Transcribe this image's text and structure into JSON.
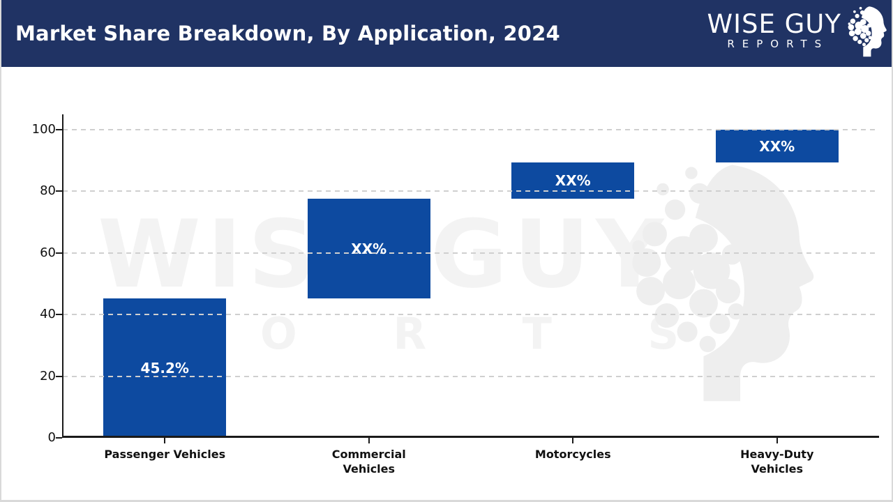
{
  "header": {
    "title": "Market Share Breakdown, By Application, 2024",
    "bg_color": "#203364",
    "logo": {
      "line1": "WISE GUY",
      "line2": "REPORTS"
    }
  },
  "watermark": {
    "line1": "WISE GUY",
    "line2": "P O R T S"
  },
  "chart_data": {
    "type": "bar",
    "subtype": "waterfall",
    "title": "Market Share Breakdown, By Application, 2024",
    "categories": [
      "Passenger Vehicles",
      "Commercial Vehicles",
      "Motorcycles",
      "Heavy-Duty Vehicles"
    ],
    "category_label_lines": [
      [
        "Passenger Vehicles"
      ],
      [
        "Commercial",
        "Vehicles"
      ],
      [
        "Motorcycles"
      ],
      [
        "Heavy-Duty",
        "Vehicles"
      ]
    ],
    "segments": [
      {
        "category": "Passenger Vehicles",
        "start": 0,
        "end": 45.2,
        "label": "45.2%"
      },
      {
        "category": "Commercial Vehicles",
        "start": 45.2,
        "end": 77.6,
        "label": "XX%"
      },
      {
        "category": "Motorcycles",
        "start": 77.6,
        "end": 89.3,
        "label": "XX%"
      },
      {
        "category": "Heavy-Duty Vehicles",
        "start": 89.3,
        "end": 100,
        "label": "XX%"
      }
    ],
    "ylim": [
      0,
      100
    ],
    "yticks": [
      0,
      20,
      40,
      60,
      80,
      100
    ],
    "grid": "horizontal-dashed",
    "legend": false,
    "bar_color": "#0d4aa0",
    "bar_label_color": "#ffffff",
    "axis_color": "#1a1a1a"
  }
}
